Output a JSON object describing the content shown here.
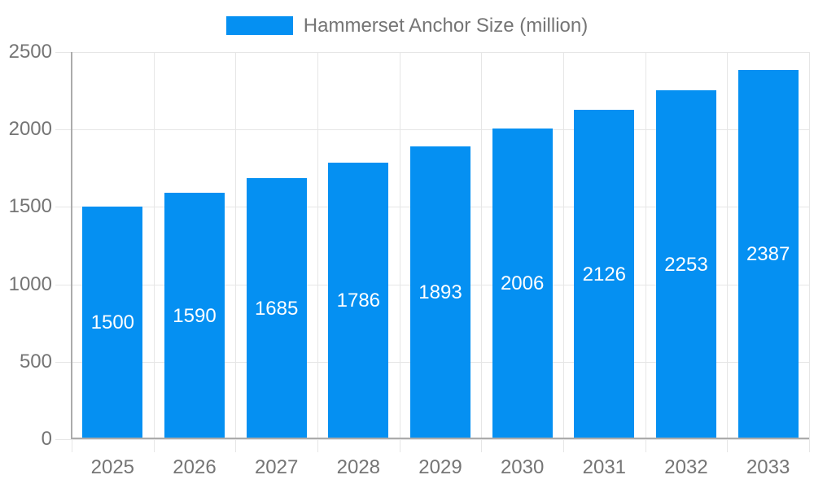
{
  "chart_data": {
    "type": "bar",
    "title": "Hammerset Anchor Size (million)",
    "categories": [
      "2025",
      "2026",
      "2027",
      "2028",
      "2029",
      "2030",
      "2031",
      "2032",
      "2033"
    ],
    "values": [
      1500,
      1590,
      1685,
      1786,
      1893,
      2006,
      2126,
      2253,
      2387
    ],
    "xlabel": "",
    "ylabel": "",
    "ylim": [
      0,
      2500
    ],
    "y_ticks": [
      0,
      500,
      1000,
      1500,
      2000,
      2500
    ],
    "grid": true,
    "legend_position": "top",
    "bar_labels_inside": true,
    "colors": {
      "bar": "#0590f2",
      "bar_label_text": "#ffffff",
      "grid_line": "#e6e6e6",
      "axis_line": "#ababab",
      "tick_text": "#757575",
      "legend_text": "#757575",
      "background": "#ffffff"
    }
  }
}
